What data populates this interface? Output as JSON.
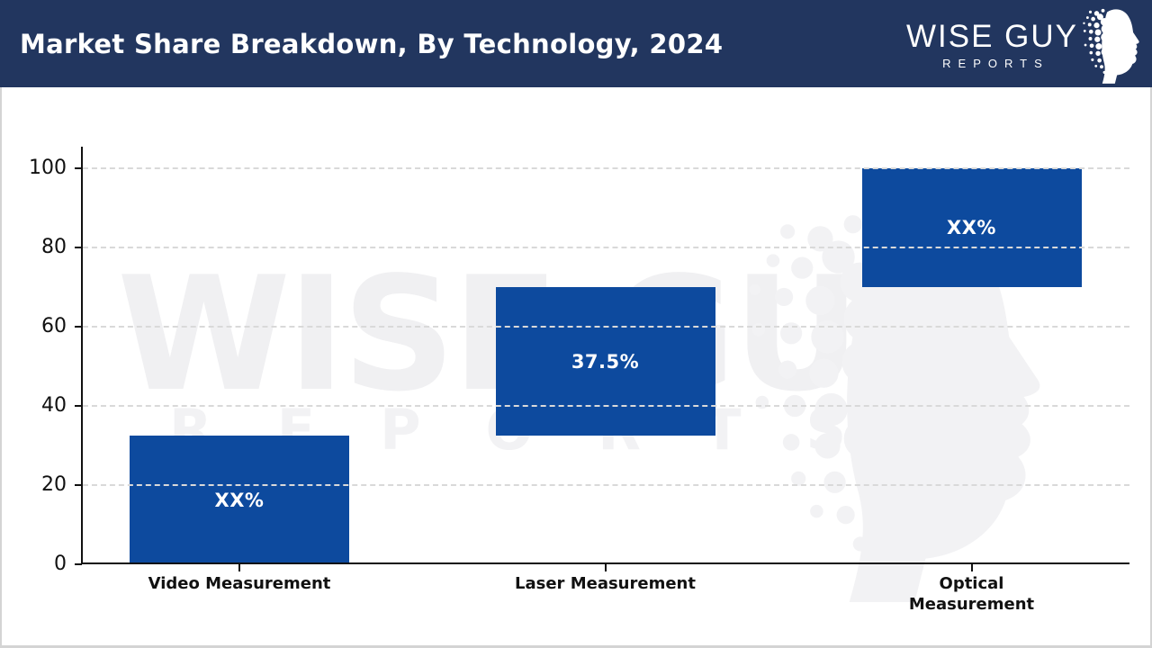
{
  "header": {
    "title": "Market Share Breakdown, By Technology, 2024",
    "logo": {
      "wordmark": "WISE GUY",
      "subtext": "REPORTS"
    }
  },
  "watermark": {
    "wordmark": "WISE GUY",
    "subtext": "REPORTS"
  },
  "chart_data": {
    "type": "bar",
    "subtype": "floating-segment-waterfall",
    "title": "Market Share Breakdown, By Technology, 2024",
    "categories": [
      "Video Measurement",
      "Laser Measurement",
      "Optical\nMeasurement"
    ],
    "bars": [
      {
        "category": "Video Measurement",
        "start": 0,
        "end": 32.5,
        "label": "XX%"
      },
      {
        "category": "Laser Measurement",
        "start": 32.5,
        "end": 70,
        "label": "37.5%"
      },
      {
        "category": "Optical\nMeasurement",
        "start": 70,
        "end": 100,
        "label": "XX%"
      }
    ],
    "y_ticks": [
      0,
      20,
      40,
      60,
      80,
      100
    ],
    "ylim": [
      0,
      107
    ],
    "xlabel": "",
    "ylabel": "",
    "grid": "horizontal-dashed",
    "legend": "none",
    "bar_color": "#0d4a9e",
    "grid_color": "#d9d9d9",
    "header_color": "#22365f"
  }
}
